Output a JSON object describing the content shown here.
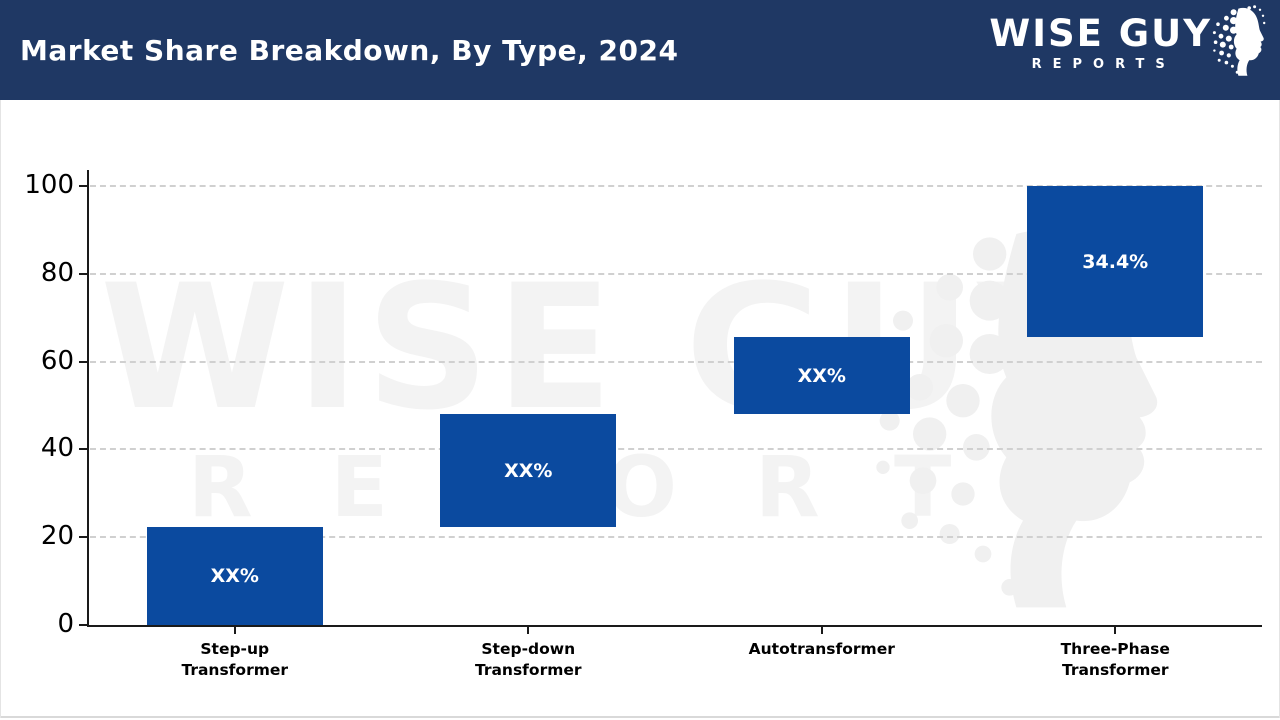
{
  "header": {
    "title": "Market Share Breakdown, By Type, 2024",
    "logo": {
      "line1": "WISE GUY",
      "line2": "REPORTS"
    }
  },
  "watermark": {
    "line1": "WISE GUY",
    "line2": "REPORTS"
  },
  "chart_data": {
    "type": "bar",
    "subtype": "waterfall",
    "title": "Market Share Breakdown, By Type, 2024",
    "categories": [
      "Step-up Transformer",
      "Step-down Transformer",
      "Autotransformer",
      "Three-Phase Transformer"
    ],
    "category_lines": [
      [
        "Step-up",
        "Transformer"
      ],
      [
        "Step-down",
        "Transformer"
      ],
      [
        "Autotransformer"
      ],
      [
        "Three-Phase",
        "Transformer"
      ]
    ],
    "segments": [
      {
        "category": "Step-up Transformer",
        "start": 0,
        "end": 22.3,
        "label": "XX%"
      },
      {
        "category": "Step-down Transformer",
        "start": 22.3,
        "end": 48.0,
        "label": "XX%"
      },
      {
        "category": "Autotransformer",
        "start": 48.0,
        "end": 65.6,
        "label": "XX%"
      },
      {
        "category": "Three-Phase Transformer",
        "start": 65.6,
        "end": 100,
        "label": "34.4%"
      }
    ],
    "xlabel": "",
    "ylabel": "",
    "ylim": [
      0,
      100
    ],
    "yticks": [
      0,
      20,
      40,
      60,
      80,
      100
    ],
    "grid": "horizontal dashed",
    "legend": "none",
    "bar_color": "#0b4a9f",
    "bar_label_color": "#ffffff"
  },
  "colors": {
    "header_bg": "#1f3864",
    "bar": "#0b4a9f",
    "watermark": "#f3f3f3",
    "gridline": "#d0d0d0",
    "axis": "#1a1a1a",
    "tick_text": "#000000"
  }
}
